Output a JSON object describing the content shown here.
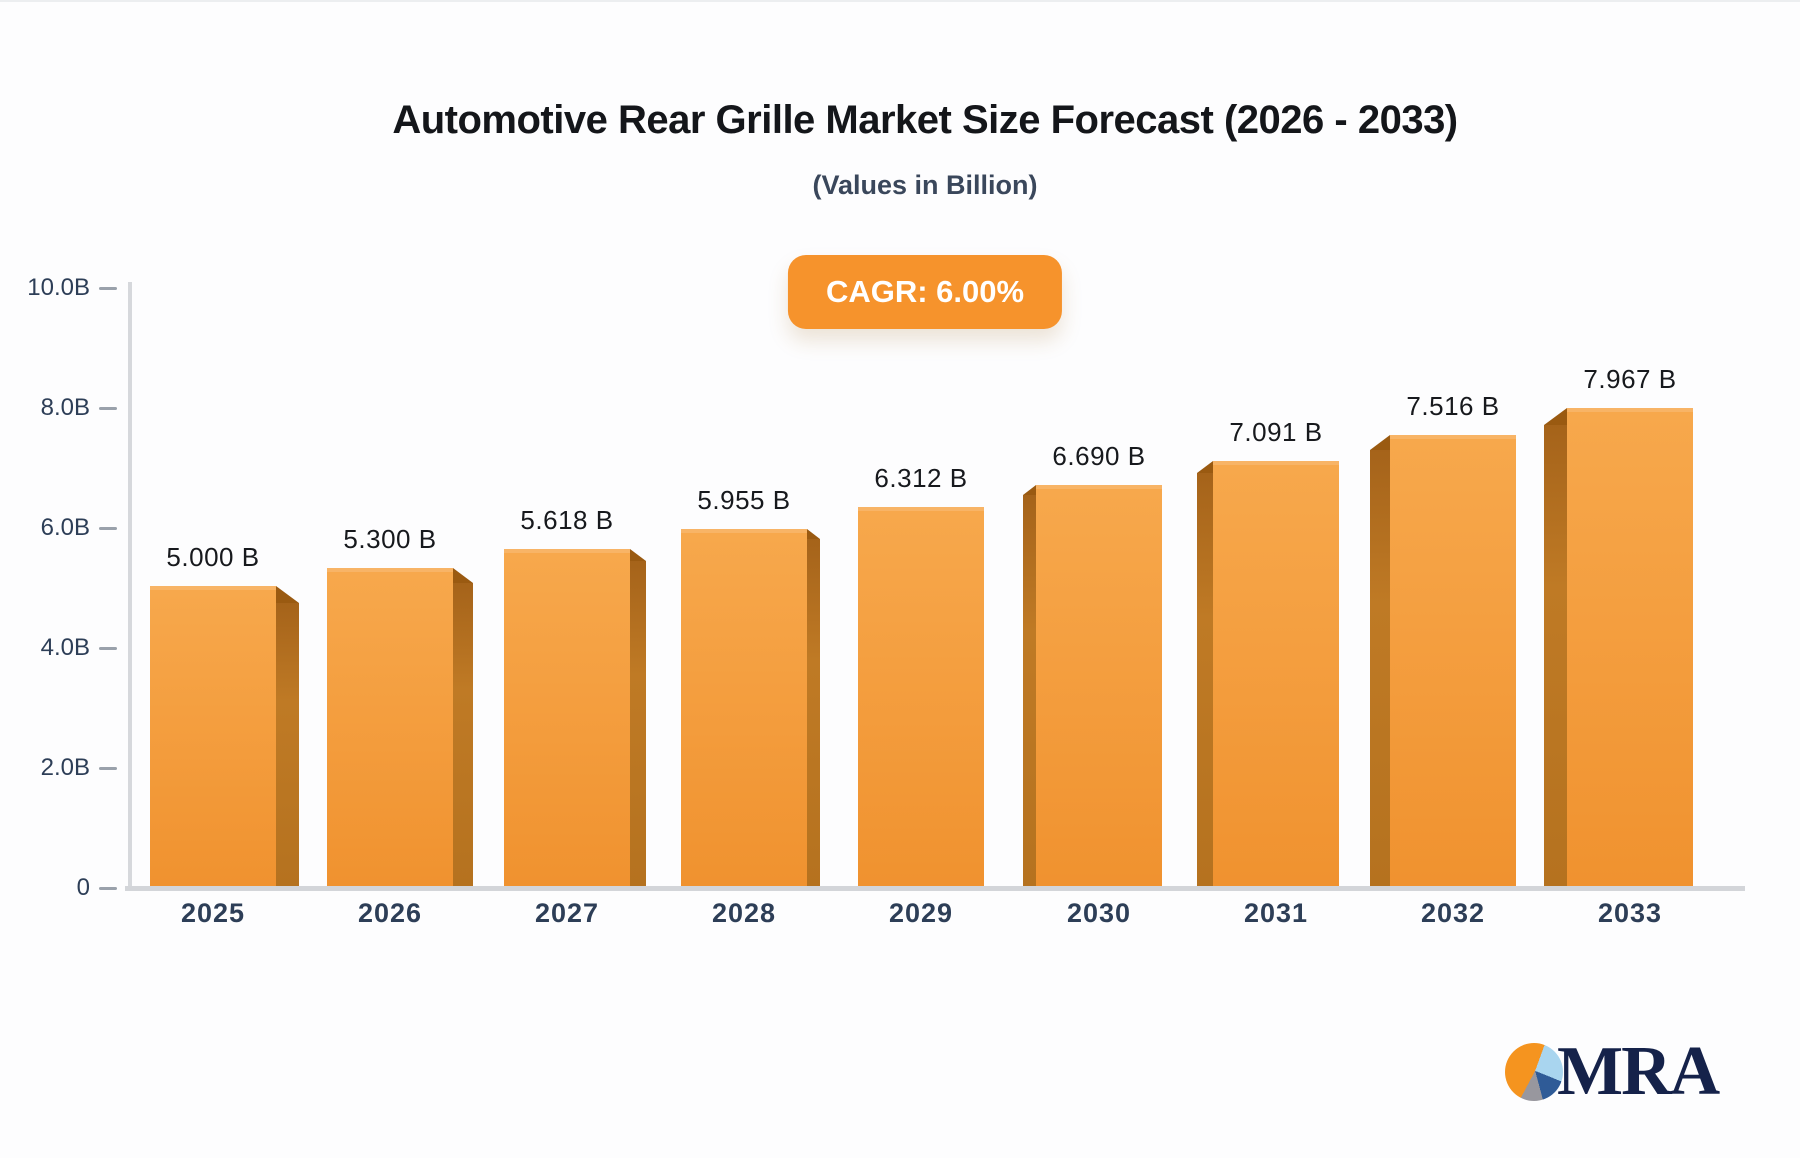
{
  "header": {
    "title": "Automotive Rear Grille Market Size Forecast (2026 - 2033)",
    "subtitle": "(Values in Billion)",
    "cagr_badge": {
      "label": "CAGR: 6.00%",
      "bg_color": "#f6932c",
      "text_color": "#ffffff"
    }
  },
  "chart_data": {
    "type": "bar",
    "title": "Automotive Rear Grille Market Size Forecast (2026 - 2033)",
    "subtitle": "(Values in Billion)",
    "categories": [
      "2025",
      "2026",
      "2027",
      "2028",
      "2029",
      "2030",
      "2031",
      "2032",
      "2033"
    ],
    "values": [
      5.0,
      5.3,
      5.618,
      5.955,
      6.312,
      6.69,
      7.091,
      7.516,
      7.967
    ],
    "value_labels": [
      "5.000 B",
      "5.300 B",
      "5.618 B",
      "5.955 B",
      "6.312 B",
      "6.690 B",
      "7.091 B",
      "7.516 B",
      "7.967 B"
    ],
    "xlabel": "",
    "ylabel": "",
    "ylim": [
      0,
      10
    ],
    "yticks": [
      {
        "value": 10,
        "label": "10.0B"
      },
      {
        "value": 8,
        "label": "8.0B"
      },
      {
        "value": 6,
        "label": "6.0B"
      },
      {
        "value": 4,
        "label": "4.0B"
      },
      {
        "value": 2,
        "label": "2.0B"
      },
      {
        "value": 0,
        "label": "0"
      }
    ],
    "grid": false,
    "legend": false,
    "style": "3d-perspective-bars",
    "colors": {
      "bar_front_top": "#f7a84c",
      "bar_front_bottom": "#f0922f",
      "bar_top_edge_highlight": "#f8b466",
      "bar_side_dark": "#a5631a",
      "bar_side_light": "#bf7a25",
      "bar_bevel": "#9a5a11",
      "axis_line": "#d6d8dc",
      "tick_dash": "#9aa1ab",
      "tick_label": "#2d3e57",
      "value_label": "#17191d"
    }
  },
  "logo": {
    "text": "MRA",
    "text_color": "#15224a",
    "pie_slices": [
      {
        "name": "orange-slice",
        "color": "#f5941f"
      },
      {
        "name": "light-blue-slice",
        "color": "#a9d5ef"
      },
      {
        "name": "dark-blue-slice",
        "color": "#2f5b97"
      },
      {
        "name": "gray-slice",
        "color": "#98979e"
      }
    ]
  }
}
